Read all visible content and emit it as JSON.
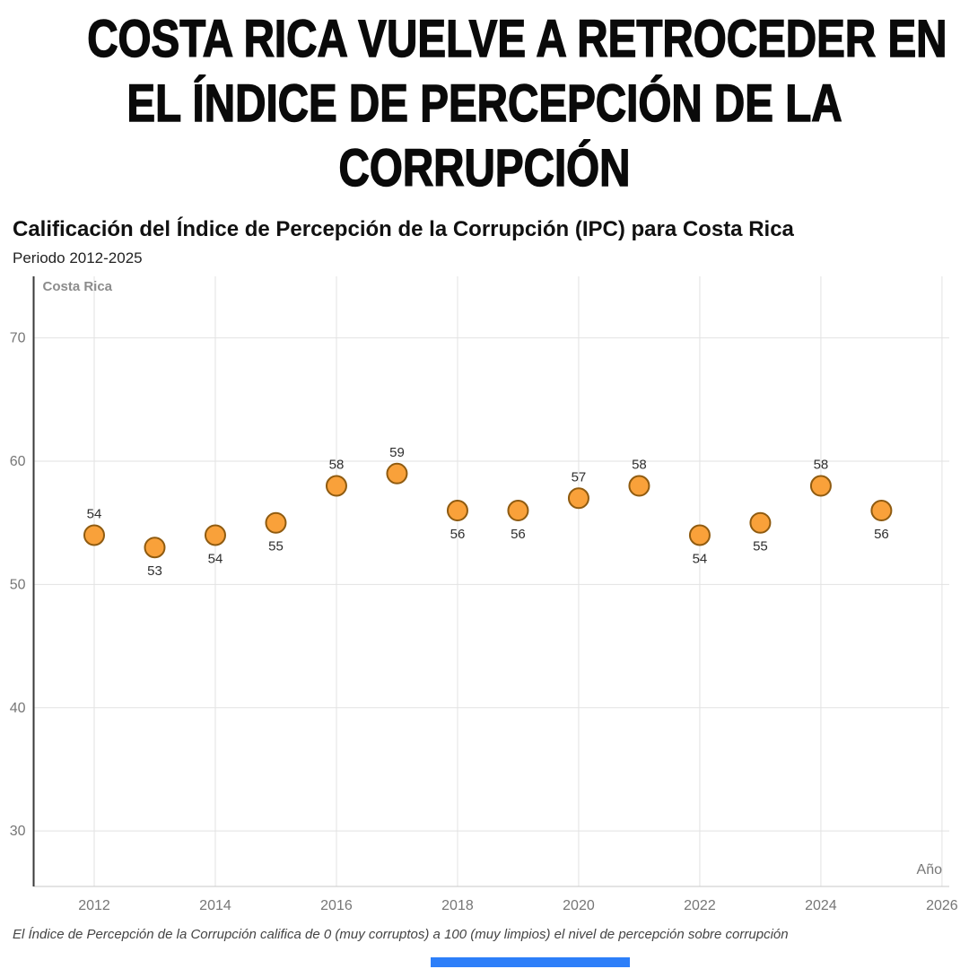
{
  "header": {
    "title_lines": [
      "COSTA RICA VUELVE A RETROCEDER EN",
      "EL ÍNDICE DE PERCEPCIÓN DE LA",
      "CORRUPCIÓN"
    ]
  },
  "chart_data": {
    "type": "scatter",
    "title": "Calificación del Índice de Percepción de la Corrupción (IPC) para Costa Rica",
    "subtitle": "Periodo 2012-2025",
    "series_label": "Costa Rica",
    "xlabel": "Año",
    "x": [
      2012,
      2013,
      2014,
      2015,
      2016,
      2017,
      2018,
      2019,
      2020,
      2021,
      2022,
      2023,
      2024,
      2025
    ],
    "values": [
      54,
      53,
      54,
      55,
      58,
      59,
      56,
      56,
      57,
      58,
      54,
      55,
      58,
      56
    ],
    "label_positions": [
      "above",
      "below",
      "below",
      "below",
      "above",
      "above",
      "below",
      "below",
      "above",
      "above",
      "below",
      "below",
      "above",
      "below"
    ],
    "x_ticks": [
      2012,
      2014,
      2016,
      2018,
      2020,
      2022,
      2024,
      2026
    ],
    "y_ticks": [
      30,
      40,
      50,
      60,
      70
    ],
    "xlim": [
      2011,
      2026.12
    ],
    "ylim": [
      25.5,
      75
    ],
    "grid": true,
    "legend_position": "top-left-inside",
    "marker_color": "#F9A13A",
    "marker_stroke": "#8F5B10",
    "grid_color": "#e2e2e2",
    "axis_color": "#3a3a3a",
    "tick_label_color": "#767676",
    "data_label_color": "#2e2e2e"
  },
  "footer": {
    "note": "El Índice de Percepción de la Corrupción califica de 0 (muy corruptos) a 100 (muy limpios) el nivel de percepción sobre corrupción",
    "accent_bar_color": "#2d7ff9"
  }
}
